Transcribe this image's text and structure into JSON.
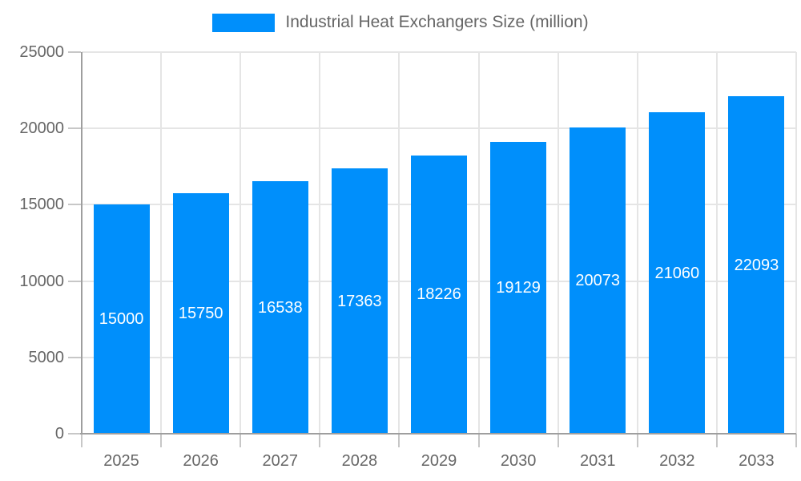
{
  "legend": {
    "label": "Industrial Heat Exchangers Size (million)"
  },
  "chart_data": {
    "type": "bar",
    "title": "Industrial Heat Exchangers Size (million)",
    "categories": [
      "2025",
      "2026",
      "2027",
      "2028",
      "2029",
      "2030",
      "2031",
      "2032",
      "2033"
    ],
    "values": [
      15000,
      15750,
      16538,
      17363,
      18226,
      19129,
      20073,
      21060,
      22093
    ],
    "xlabel": "",
    "ylabel": "",
    "ylim": [
      0,
      25000
    ],
    "ytick_step": 5000,
    "ytick_labels": [
      "0",
      "5000",
      "10000",
      "15000",
      "20000",
      "25000"
    ],
    "grid": true,
    "legend_position": "top",
    "bar_color": "#008FFB",
    "bar_label_color": "#ffffff",
    "axis_text_color": "#666666",
    "grid_color": "#e5e5e5",
    "axis_line_color": "#9e9e9e"
  }
}
